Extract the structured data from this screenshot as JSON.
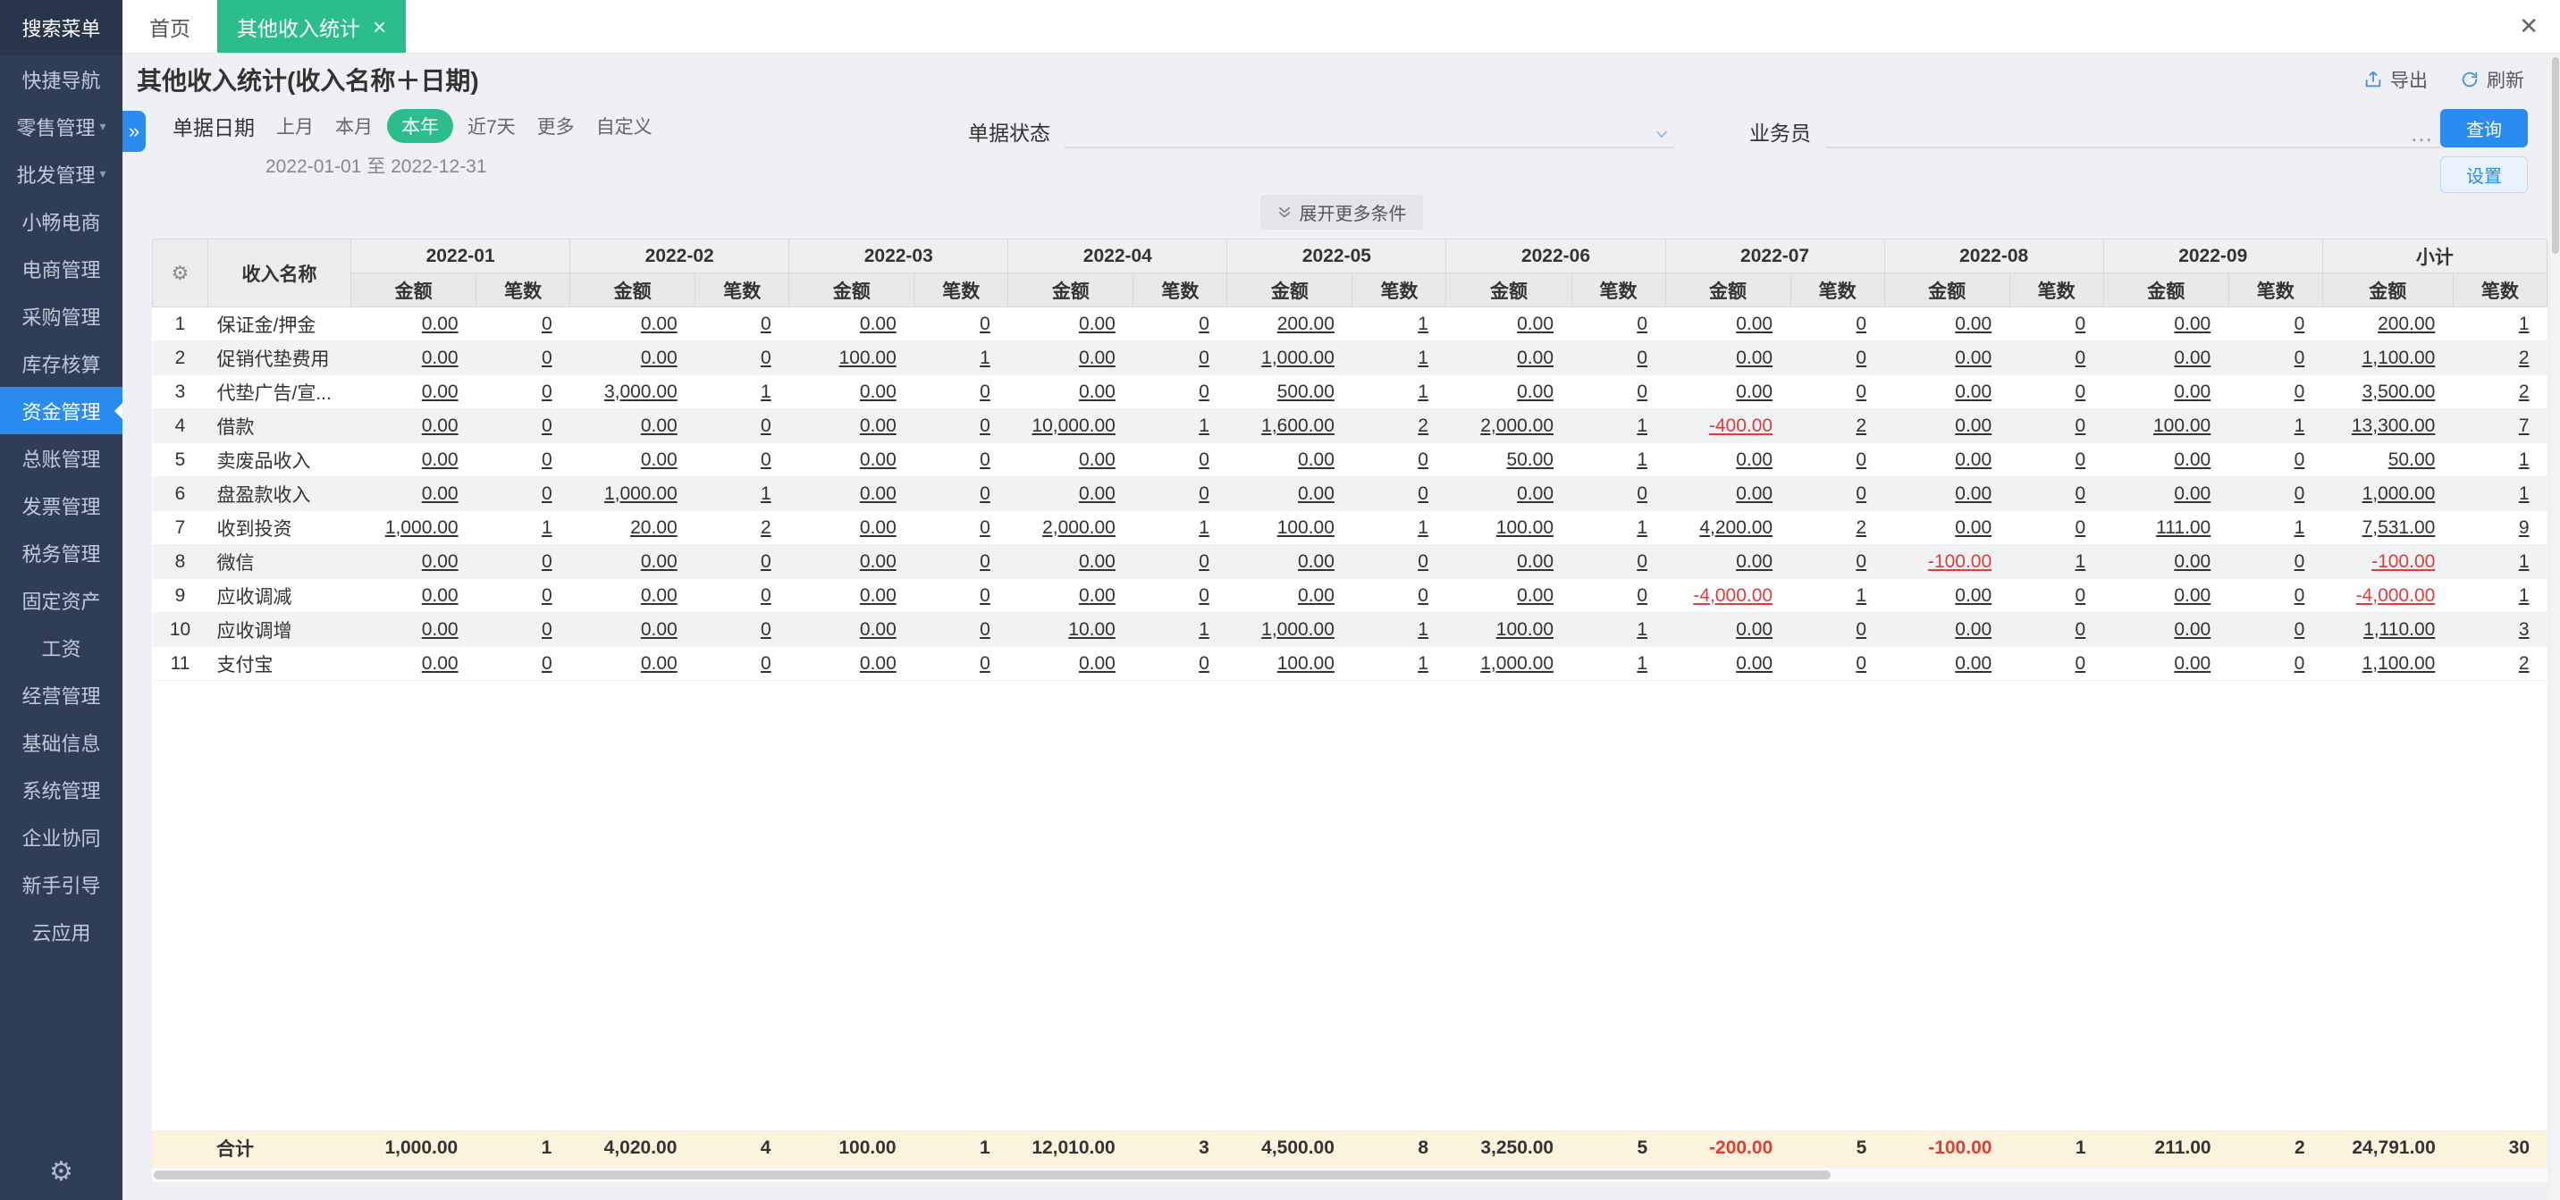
{
  "colors": {
    "accent": "#2a8cf0",
    "tab_green": "#2bbd8b",
    "negative": "#e23c39",
    "sidebar_bg": "#2f3e56",
    "total_row_bg": "#fbf3dc"
  },
  "sidebar": {
    "search_label": "搜索菜单",
    "items": [
      {
        "label": "快捷导航"
      },
      {
        "label": "零售管理",
        "arrow": true
      },
      {
        "label": "批发管理",
        "arrow": true
      },
      {
        "label": "小畅电商"
      },
      {
        "label": "电商管理"
      },
      {
        "label": "采购管理"
      },
      {
        "label": "库存核算"
      },
      {
        "label": "资金管理",
        "active": true
      },
      {
        "label": "总账管理"
      },
      {
        "label": "发票管理"
      },
      {
        "label": "税务管理"
      },
      {
        "label": "固定资产"
      },
      {
        "label": "工资"
      },
      {
        "label": "经营管理"
      },
      {
        "label": "基础信息"
      },
      {
        "label": "系统管理"
      },
      {
        "label": "企业协同"
      },
      {
        "label": "新手引导"
      },
      {
        "label": "云应用"
      }
    ]
  },
  "tabbar": {
    "home": "首页",
    "active_tab": "其他收入统计"
  },
  "header": {
    "title": "其他收入统计(收入名称＋日期)",
    "export_label": "导出",
    "refresh_label": "刷新"
  },
  "filters": {
    "date_label": "单据日期",
    "date_options": [
      {
        "label": "上月"
      },
      {
        "label": "本月"
      },
      {
        "label": "本年",
        "selected": true
      },
      {
        "label": "近7天"
      },
      {
        "label": "更多"
      },
      {
        "label": "自定义"
      }
    ],
    "date_range": "2022-01-01 至 2022-12-31",
    "status_label": "单据状态",
    "status_value": "",
    "salesman_label": "业务员",
    "salesman_value": "",
    "query_label": "查询",
    "settings_label": "设置",
    "expand_label": "展开更多条件"
  },
  "table": {
    "name_header": "收入名称",
    "amount_header": "金额",
    "count_header": "笔数",
    "months": [
      "2022-01",
      "2022-02",
      "2022-03",
      "2022-04",
      "2022-05",
      "2022-06",
      "2022-07",
      "2022-08",
      "2022-09"
    ],
    "subtotal_label": "小计",
    "rows": [
      {
        "name": "保证金/押金",
        "cells": [
          [
            "0.00",
            "0"
          ],
          [
            "0.00",
            "0"
          ],
          [
            "0.00",
            "0"
          ],
          [
            "0.00",
            "0"
          ],
          [
            "200.00",
            "1"
          ],
          [
            "0.00",
            "0"
          ],
          [
            "0.00",
            "0"
          ],
          [
            "0.00",
            "0"
          ],
          [
            "0.00",
            "0"
          ],
          [
            "200.00",
            "1"
          ]
        ]
      },
      {
        "name": "促销代垫费用",
        "cells": [
          [
            "0.00",
            "0"
          ],
          [
            "0.00",
            "0"
          ],
          [
            "100.00",
            "1"
          ],
          [
            "0.00",
            "0"
          ],
          [
            "1,000.00",
            "1"
          ],
          [
            "0.00",
            "0"
          ],
          [
            "0.00",
            "0"
          ],
          [
            "0.00",
            "0"
          ],
          [
            "0.00",
            "0"
          ],
          [
            "1,100.00",
            "2"
          ]
        ]
      },
      {
        "name": "代垫广告/宣...",
        "cells": [
          [
            "0.00",
            "0"
          ],
          [
            "3,000.00",
            "1"
          ],
          [
            "0.00",
            "0"
          ],
          [
            "0.00",
            "0"
          ],
          [
            "500.00",
            "1"
          ],
          [
            "0.00",
            "0"
          ],
          [
            "0.00",
            "0"
          ],
          [
            "0.00",
            "0"
          ],
          [
            "0.00",
            "0"
          ],
          [
            "3,500.00",
            "2"
          ]
        ]
      },
      {
        "name": "借款",
        "cells": [
          [
            "0.00",
            "0"
          ],
          [
            "0.00",
            "0"
          ],
          [
            "0.00",
            "0"
          ],
          [
            "10,000.00",
            "1"
          ],
          [
            "1,600.00",
            "2"
          ],
          [
            "2,000.00",
            "1"
          ],
          [
            "-400.00",
            "2"
          ],
          [
            "0.00",
            "0"
          ],
          [
            "100.00",
            "1"
          ],
          [
            "13,300.00",
            "7"
          ]
        ]
      },
      {
        "name": "卖废品收入",
        "cells": [
          [
            "0.00",
            "0"
          ],
          [
            "0.00",
            "0"
          ],
          [
            "0.00",
            "0"
          ],
          [
            "0.00",
            "0"
          ],
          [
            "0.00",
            "0"
          ],
          [
            "50.00",
            "1"
          ],
          [
            "0.00",
            "0"
          ],
          [
            "0.00",
            "0"
          ],
          [
            "0.00",
            "0"
          ],
          [
            "50.00",
            "1"
          ]
        ]
      },
      {
        "name": "盘盈款收入",
        "cells": [
          [
            "0.00",
            "0"
          ],
          [
            "1,000.00",
            "1"
          ],
          [
            "0.00",
            "0"
          ],
          [
            "0.00",
            "0"
          ],
          [
            "0.00",
            "0"
          ],
          [
            "0.00",
            "0"
          ],
          [
            "0.00",
            "0"
          ],
          [
            "0.00",
            "0"
          ],
          [
            "0.00",
            "0"
          ],
          [
            "1,000.00",
            "1"
          ]
        ]
      },
      {
        "name": "收到投资",
        "cells": [
          [
            "1,000.00",
            "1"
          ],
          [
            "20.00",
            "2"
          ],
          [
            "0.00",
            "0"
          ],
          [
            "2,000.00",
            "1"
          ],
          [
            "100.00",
            "1"
          ],
          [
            "100.00",
            "1"
          ],
          [
            "4,200.00",
            "2"
          ],
          [
            "0.00",
            "0"
          ],
          [
            "111.00",
            "1"
          ],
          [
            "7,531.00",
            "9"
          ]
        ]
      },
      {
        "name": "微信",
        "cells": [
          [
            "0.00",
            "0"
          ],
          [
            "0.00",
            "0"
          ],
          [
            "0.00",
            "0"
          ],
          [
            "0.00",
            "0"
          ],
          [
            "0.00",
            "0"
          ],
          [
            "0.00",
            "0"
          ],
          [
            "0.00",
            "0"
          ],
          [
            "-100.00",
            "1"
          ],
          [
            "0.00",
            "0"
          ],
          [
            "-100.00",
            "1"
          ]
        ]
      },
      {
        "name": "应收调减",
        "cells": [
          [
            "0.00",
            "0"
          ],
          [
            "0.00",
            "0"
          ],
          [
            "0.00",
            "0"
          ],
          [
            "0.00",
            "0"
          ],
          [
            "0.00",
            "0"
          ],
          [
            "0.00",
            "0"
          ],
          [
            "-4,000.00",
            "1"
          ],
          [
            "0.00",
            "0"
          ],
          [
            "0.00",
            "0"
          ],
          [
            "-4,000.00",
            "1"
          ]
        ]
      },
      {
        "name": "应收调增",
        "cells": [
          [
            "0.00",
            "0"
          ],
          [
            "0.00",
            "0"
          ],
          [
            "0.00",
            "0"
          ],
          [
            "10.00",
            "1"
          ],
          [
            "1,000.00",
            "1"
          ],
          [
            "100.00",
            "1"
          ],
          [
            "0.00",
            "0"
          ],
          [
            "0.00",
            "0"
          ],
          [
            "0.00",
            "0"
          ],
          [
            "1,110.00",
            "3"
          ]
        ]
      },
      {
        "name": "支付宝",
        "cells": [
          [
            "0.00",
            "0"
          ],
          [
            "0.00",
            "0"
          ],
          [
            "0.00",
            "0"
          ],
          [
            "0.00",
            "0"
          ],
          [
            "100.00",
            "1"
          ],
          [
            "1,000.00",
            "1"
          ],
          [
            "0.00",
            "0"
          ],
          [
            "0.00",
            "0"
          ],
          [
            "0.00",
            "0"
          ],
          [
            "1,100.00",
            "2"
          ]
        ]
      }
    ],
    "total_label": "合计",
    "totals": [
      [
        "1,000.00",
        "1"
      ],
      [
        "4,020.00",
        "4"
      ],
      [
        "100.00",
        "1"
      ],
      [
        "12,010.00",
        "3"
      ],
      [
        "4,500.00",
        "8"
      ],
      [
        "3,250.00",
        "5"
      ],
      [
        "-200.00",
        "5"
      ],
      [
        "-100.00",
        "1"
      ],
      [
        "211.00",
        "2"
      ],
      [
        "24,791.00",
        "30"
      ]
    ]
  }
}
